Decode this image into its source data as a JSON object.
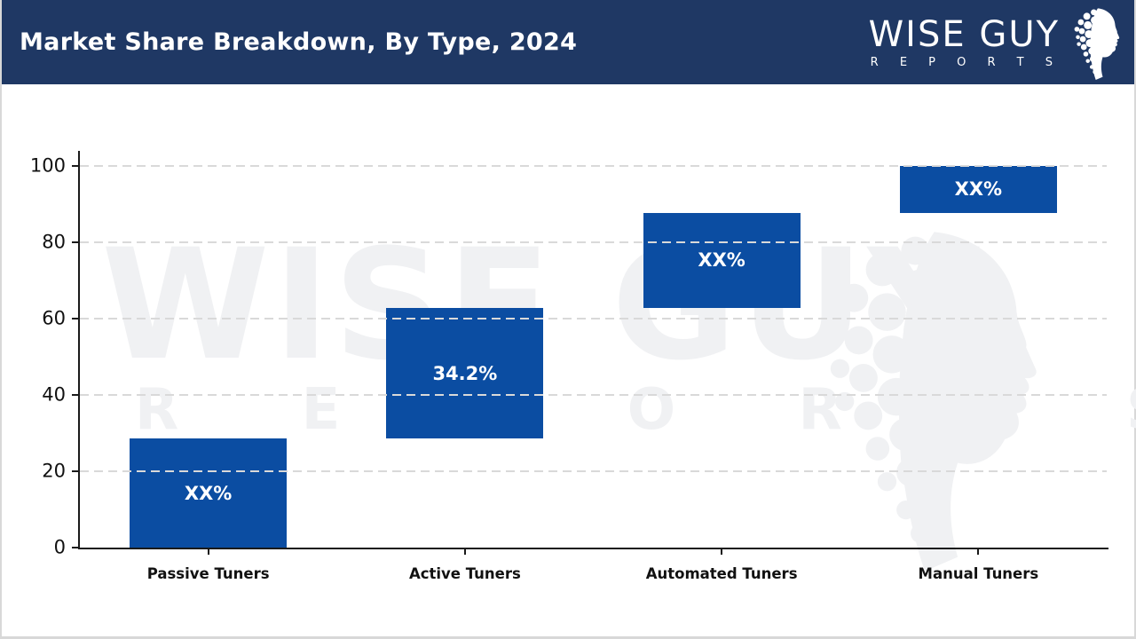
{
  "header": {
    "bg_color": "#1f3864",
    "title": "Market Share Breakdown, By Type, 2024",
    "logo": {
      "line1": "WISE GUY",
      "line2": "R E P O R T S"
    }
  },
  "watermark": {
    "line1": "WISE GUY",
    "line2": "R E P O R T S"
  },
  "chart_data": {
    "type": "bar",
    "subtype": "waterfall-stacked-segments",
    "title": "Market Share Breakdown, By Type, 2024",
    "categories": [
      "Passive Tuners",
      "Active Tuners",
      "Automated Tuners",
      "Manual Tuners"
    ],
    "segments": [
      {
        "category": "Passive Tuners",
        "start": 0,
        "end": 28.6,
        "value": 28.6,
        "value_label": "XX%"
      },
      {
        "category": "Active Tuners",
        "start": 28.6,
        "end": 62.8,
        "value": 34.2,
        "value_label": "34.2%"
      },
      {
        "category": "Automated Tuners",
        "start": 62.8,
        "end": 87.8,
        "value": 25.0,
        "value_label": "XX%"
      },
      {
        "category": "Manual Tuners",
        "start": 87.8,
        "end": 100,
        "value": 12.2,
        "value_label": "XX%"
      }
    ],
    "bar_color": "#0b4da2",
    "value_label_color": "#ffffff",
    "yticks": [
      0,
      20,
      40,
      60,
      80,
      100
    ],
    "ylim": [
      0,
      104
    ],
    "xlabel": "",
    "ylabel": "",
    "grid": {
      "horizontal": true,
      "style": "dashed",
      "color": "#d9d9d9",
      "drawn_over_bars": true
    },
    "legend": "none",
    "axis_color": "#1a1a1a"
  }
}
